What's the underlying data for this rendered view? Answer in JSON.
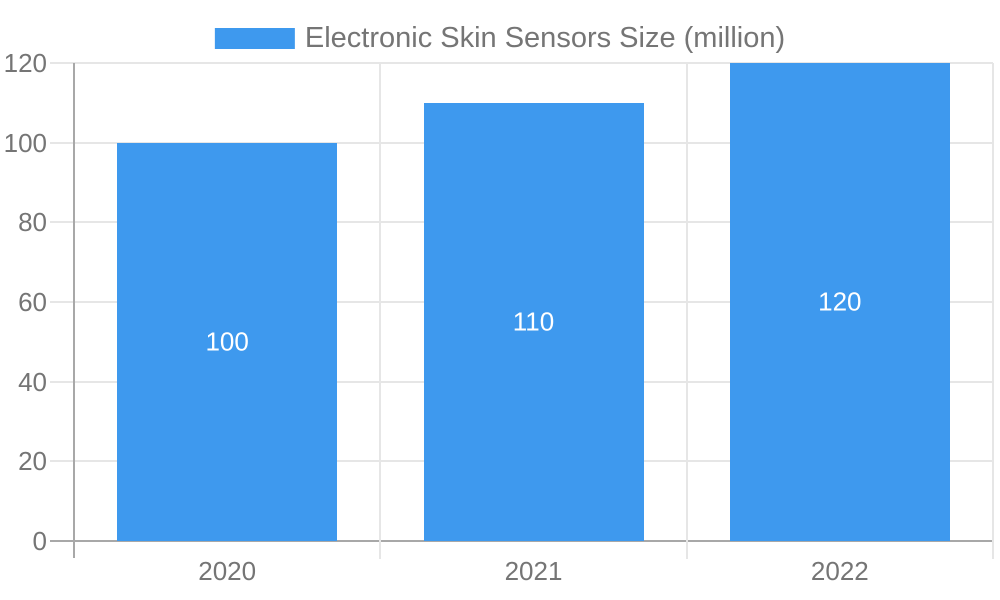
{
  "chart_data": {
    "type": "bar",
    "title": "Electronic Skin Sensors Size (million)",
    "categories": [
      "2020",
      "2021",
      "2022"
    ],
    "series": [
      {
        "name": "Electronic Skin Sensors Size (million)",
        "values": [
          100,
          110,
          120
        ]
      }
    ],
    "bar_value_labels": [
      "100",
      "110",
      "120"
    ],
    "xlabel": "",
    "ylabel": "",
    "ylim": [
      0,
      120
    ],
    "yticks": [
      0,
      20,
      40,
      60,
      80,
      100,
      120
    ],
    "grid": true,
    "legend_position": "top-center",
    "colors": {
      "bar": "#3e99ee",
      "grid": "#e6e6e6",
      "axis": "#a8a8a8",
      "tick_text": "#757575",
      "legend_text": "#757575",
      "value_label_text": "#ffffff",
      "background": "#ffffff"
    }
  }
}
